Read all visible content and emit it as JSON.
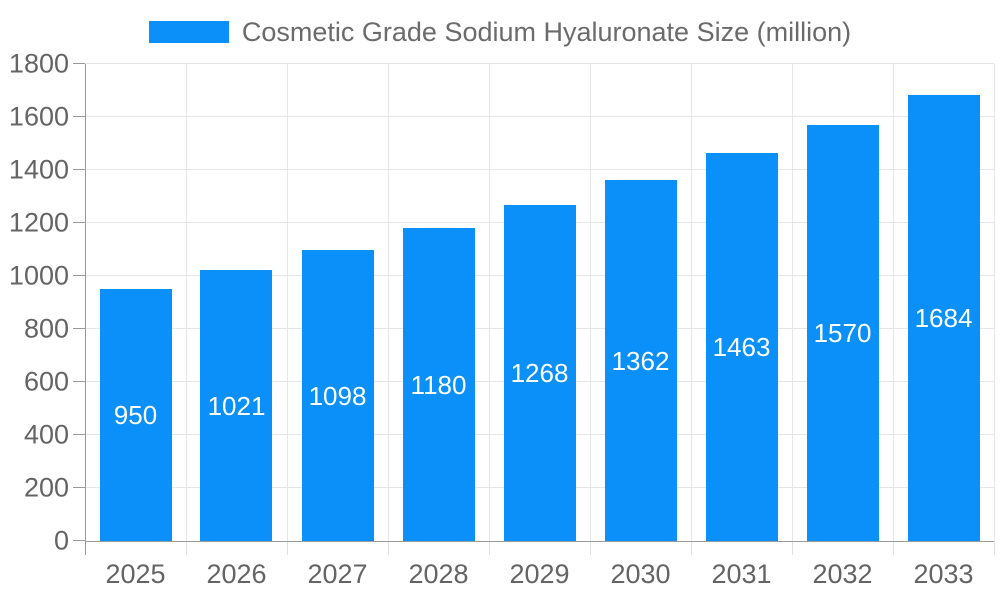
{
  "chart_data": {
    "type": "bar",
    "title": "Cosmetic Grade Sodium Hyaluronate Size (million)",
    "legend": [
      {
        "label": "Cosmetic Grade Sodium Hyaluronate Size (million)",
        "color": "#0A90F8"
      }
    ],
    "legend_position": "top",
    "categories": [
      "2025",
      "2026",
      "2027",
      "2028",
      "2029",
      "2030",
      "2031",
      "2032",
      "2033"
    ],
    "values": [
      950,
      1021,
      1098,
      1180,
      1268,
      1362,
      1463,
      1570,
      1684
    ],
    "series": [
      {
        "name": "Cosmetic Grade Sodium Hyaluronate Size (million)",
        "values": [
          950,
          1021,
          1098,
          1180,
          1268,
          1362,
          1463,
          1570,
          1684
        ]
      }
    ],
    "xlabel": "",
    "ylabel": "",
    "ylim": [
      0,
      1800
    ],
    "yticks": [
      0,
      200,
      400,
      600,
      800,
      1000,
      1200,
      1400,
      1600,
      1800
    ],
    "grid": true,
    "bar_color": "#0A90F8",
    "bar_label_color": "#ffffff",
    "axis_text_color": "#646464",
    "legend_text_color": "#6b6b6b",
    "gridline_color": "#e6e6e6",
    "axis_line_color": "#9b9b9b"
  }
}
